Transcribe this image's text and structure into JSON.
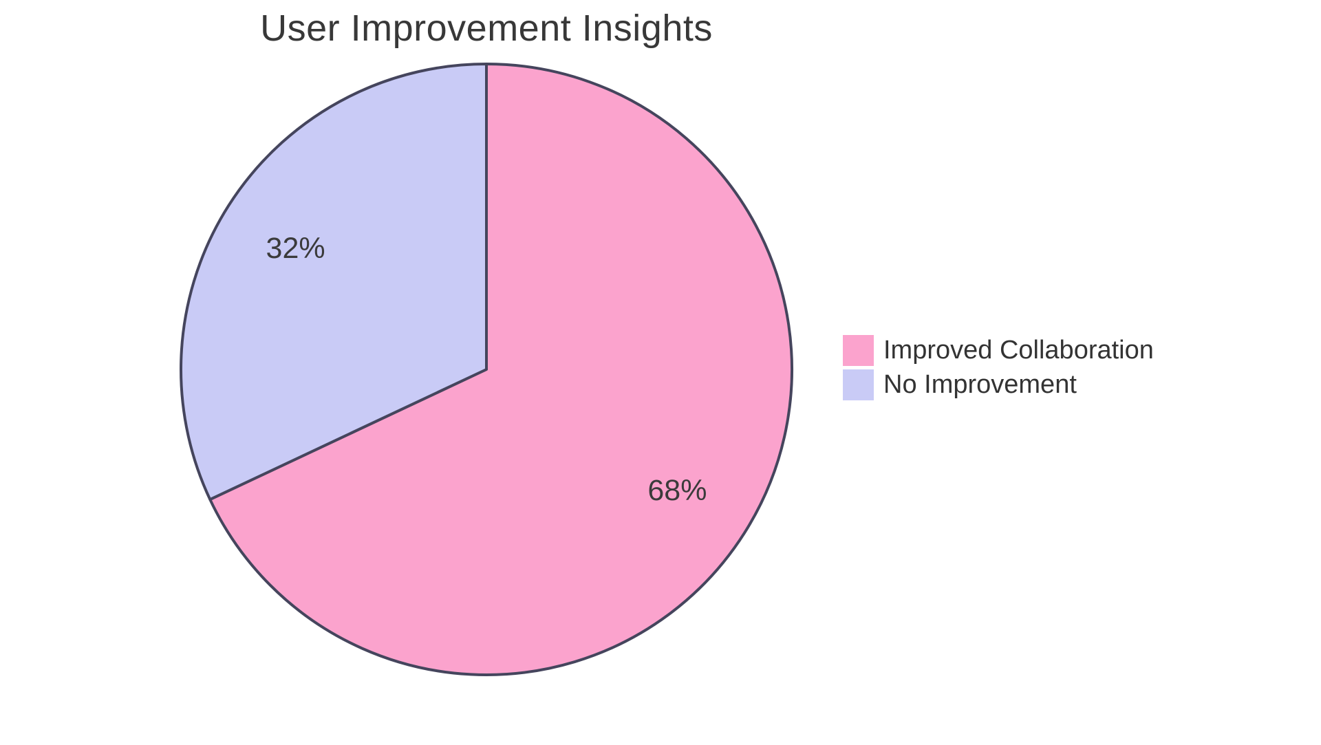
{
  "chart_data": {
    "type": "pie",
    "title": "User Improvement Insights",
    "slices": [
      {
        "label": "Improved Collaboration",
        "value": 68,
        "display": "68%",
        "color": "#FBA3CD"
      },
      {
        "label": "No Improvement",
        "value": 32,
        "display": "32%",
        "color": "#C9CBF6"
      }
    ],
    "start_angle_deg": -90,
    "direction": "clockwise",
    "stroke_color": "#45455D",
    "label_color": "#3B3B3B",
    "title_color": "#383838",
    "background_color": "#FFFFFF",
    "legend_position": "right"
  }
}
